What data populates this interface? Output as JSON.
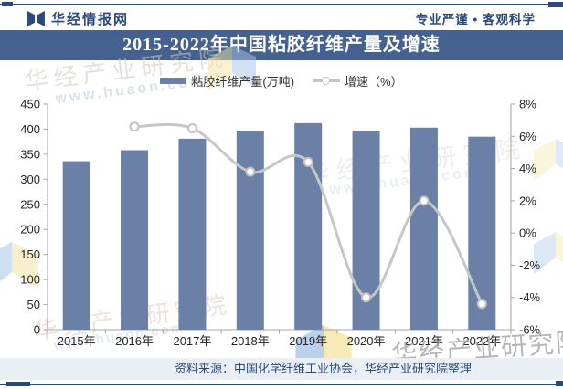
{
  "header": {
    "brand": "华经情报网",
    "slogan": "专业严谨 • 客观科学"
  },
  "title_bar": {
    "title": "2015-2022年中国粘胶纤维产量及增速"
  },
  "legend": {
    "bar_label": "粘胶纤维产量(万吨)",
    "line_label": "增速（%）"
  },
  "chart_data": {
    "type": "bar",
    "combo": "bar+line",
    "title": "2015-2022年中国粘胶纤维产量及增速",
    "categories": [
      "2015年",
      "2016年",
      "2017年",
      "2018年",
      "2019年",
      "2020年",
      "2021年",
      "2022年"
    ],
    "series": [
      {
        "name": "粘胶纤维产量(万吨)",
        "type": "bar",
        "axis": "left",
        "color": "#6B80A6",
        "values": [
          336,
          358,
          381,
          396,
          412,
          396,
          403,
          385
        ]
      },
      {
        "name": "增速（%）",
        "type": "line",
        "axis": "right",
        "color": "#C6C6C6",
        "marker": "white-circle",
        "values": [
          null,
          6.6,
          6.5,
          3.8,
          4.4,
          -4.0,
          2.0,
          -4.4
        ]
      }
    ],
    "left_axis": {
      "min": 0,
      "max": 450,
      "step": 50,
      "suffix": ""
    },
    "right_axis": {
      "min": -6,
      "max": 8,
      "step": 2,
      "suffix": "%"
    },
    "grid": false,
    "legend_position": "top"
  },
  "footer": {
    "source": "资料来源：中国化学纤维工业协会，华经产业研究院整理"
  },
  "watermark": {
    "name": "华经产业研究院",
    "url": "www.huaon.com"
  },
  "colors": {
    "navy": "#2B4A7B",
    "title_bar_bg": "#44618F",
    "bar": "#6B80A6",
    "line": "#C6C6C6",
    "footer_bg": "#EAEFF6",
    "axis": "#A6A6A6"
  }
}
